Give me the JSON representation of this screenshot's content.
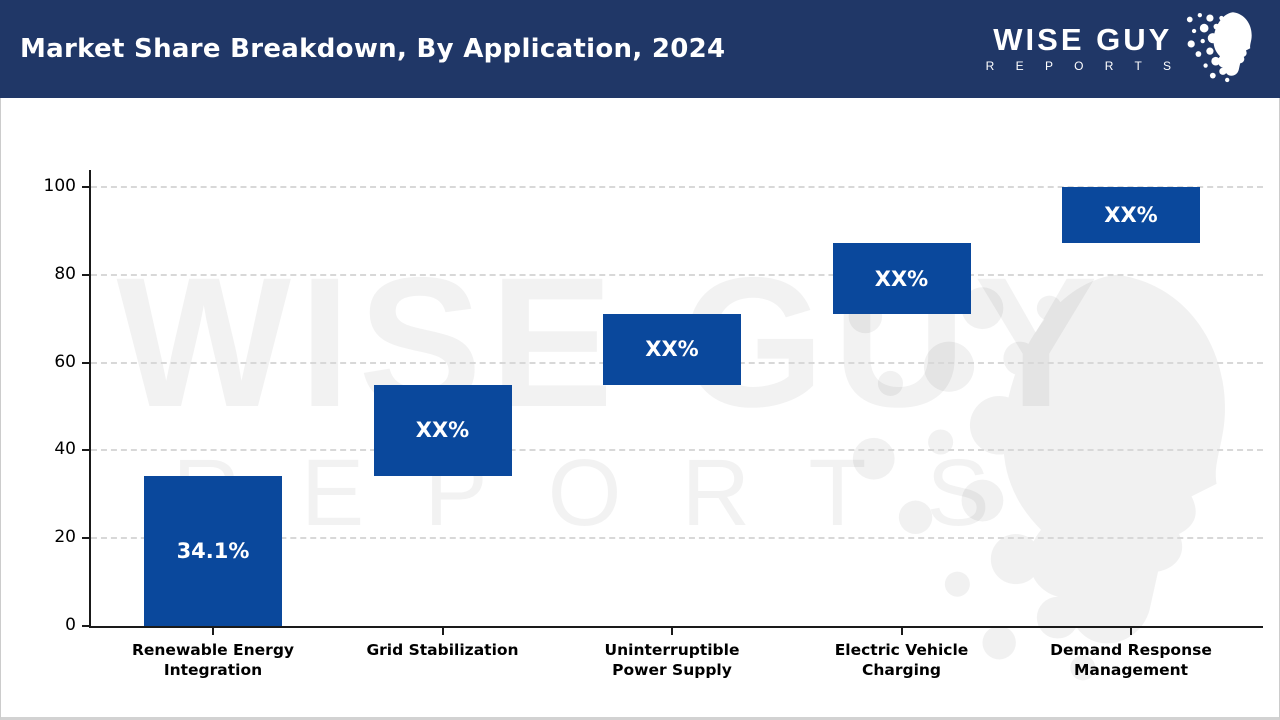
{
  "header": {
    "title": "Market Share Breakdown, By Application, 2024",
    "logo": {
      "line1": "WISE GUY",
      "line2": "R E P O R T S"
    },
    "bg_color": "#203767"
  },
  "watermark": {
    "line1": "WISE GUY",
    "line2": "REPORTS"
  },
  "chart_data": {
    "type": "bar",
    "subtype": "waterfall",
    "title": "Market Share Breakdown, By Application, 2024",
    "xlabel": "",
    "ylabel": "",
    "ylim": [
      0,
      100
    ],
    "yticks": [
      0,
      20,
      40,
      60,
      80,
      100
    ],
    "grid": "horizontal-dashed",
    "legend": "none",
    "bar_color": "#0a489c",
    "label_color": "#ffffff",
    "categories": [
      "Renewable Energy\nIntegration",
      "Grid Stabilization",
      "Uninterruptible\nPower Supply",
      "Electric Vehicle\nCharging",
      "Demand Response\nManagement"
    ],
    "segments": [
      {
        "start": 0,
        "end": 34.1,
        "label": "34.1%"
      },
      {
        "start": 34.1,
        "end": 55,
        "label": "XX%"
      },
      {
        "start": 55,
        "end": 71,
        "label": "XX%"
      },
      {
        "start": 71,
        "end": 87.3,
        "label": "XX%"
      },
      {
        "start": 87.3,
        "end": 100,
        "label": "XX%"
      }
    ]
  }
}
